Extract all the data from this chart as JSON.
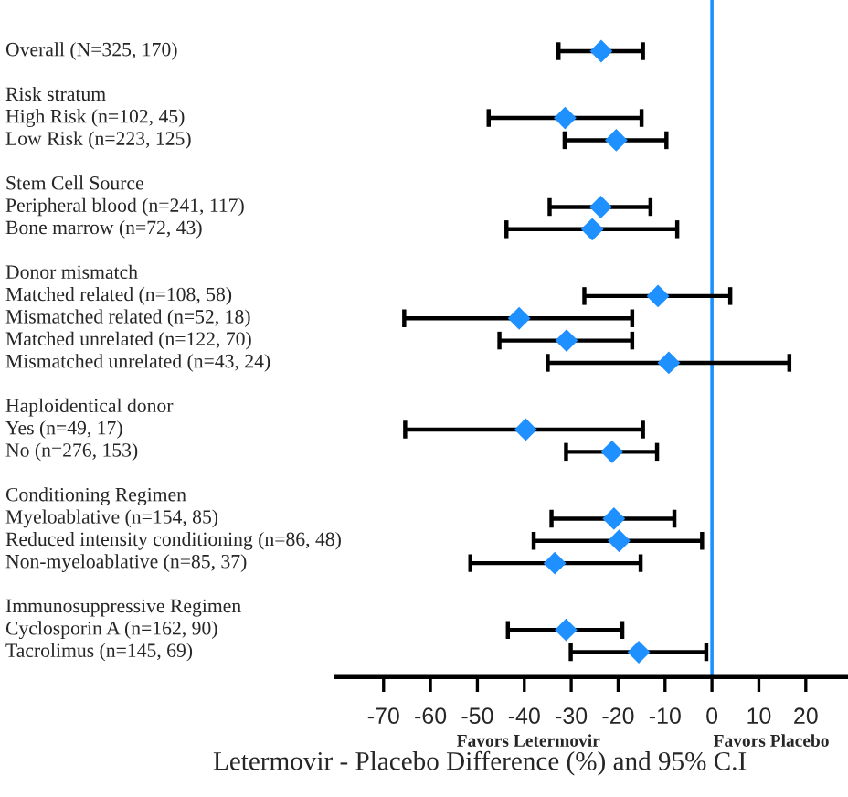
{
  "chart_data": {
    "type": "scatter",
    "orientation": "horizontal",
    "xlabel": "Letermovir - Placebo Difference (%) and 95% C.I",
    "categories": [
      "Overall (N=325, 170)",
      null,
      "Risk stratum",
      "High Risk (n=102, 45)",
      "Low Risk (n=223, 125)",
      null,
      "Stem Cell Source",
      "Peripheral blood (n=241, 117)",
      "Bone marrow (n=72, 43)",
      null,
      "Donor mismatch",
      "Matched related (n=108, 58)",
      "Mismatched related (n=52, 18)",
      "Matched unrelated (n=122, 70)",
      "Mismatched unrelated (n=43, 24)",
      null,
      "Haploidentical donor",
      "Yes (n=49, 17)",
      "No (n=276, 153)",
      null,
      "Conditioning Regimen",
      "Myeloablative (n=154, 85)",
      "Reduced intensity conditioning (n=86, 48)",
      "Non-myeloablative (n=85, 37)",
      null,
      "Immunosuppressive Regimen",
      "Cyclosporin A (n=162, 90)",
      "Tacrolimus (n=145, 69)"
    ],
    "series": [
      {
        "color": "#1e90ff",
        "values": [
          -23.6,
          null,
          null,
          -31.3,
          -20.4,
          null,
          null,
          -23.7,
          -25.5,
          null,
          null,
          -11.5,
          -41.1,
          -31.0,
          -9.2,
          null,
          null,
          -39.7,
          -21.3,
          null,
          null,
          -20.9,
          -19.8,
          -33.5,
          null,
          null,
          -31.1,
          -15.6
        ],
        "errors": [
          [
            -32.7,
            -14.7
          ],
          null,
          null,
          [
            -47.6,
            -15.0
          ],
          [
            -31.4,
            -9.7
          ],
          null,
          null,
          [
            -34.6,
            -13.1
          ],
          [
            -43.8,
            -7.4
          ],
          null,
          null,
          [
            -27.2,
            3.9
          ],
          [
            -65.6,
            -17.0
          ],
          [
            -45.3,
            -17.0
          ],
          [
            -35.0,
            16.5
          ],
          null,
          null,
          [
            -65.4,
            -14.7
          ],
          [
            -31.1,
            -11.7
          ],
          null,
          null,
          [
            -34.2,
            -8.0
          ],
          [
            -38.0,
            -2.1
          ],
          [
            -51.5,
            -15.2
          ],
          null,
          null,
          [
            -43.5,
            -19.1
          ],
          [
            -30.1,
            -1.2
          ]
        ]
      }
    ],
    "xlim": [
      -80,
      29
    ],
    "xticks": [
      -70,
      -60,
      -50,
      -40,
      -30,
      -20,
      -10,
      0,
      10,
      20
    ],
    "marker": "diamond",
    "grid": false,
    "legend": false,
    "ref_lines": [
      {
        "axis": "x",
        "value": 0,
        "color": "#1e90ff"
      }
    ],
    "annotations": [
      "Favors Letermovir",
      "Favors Placebo"
    ]
  }
}
